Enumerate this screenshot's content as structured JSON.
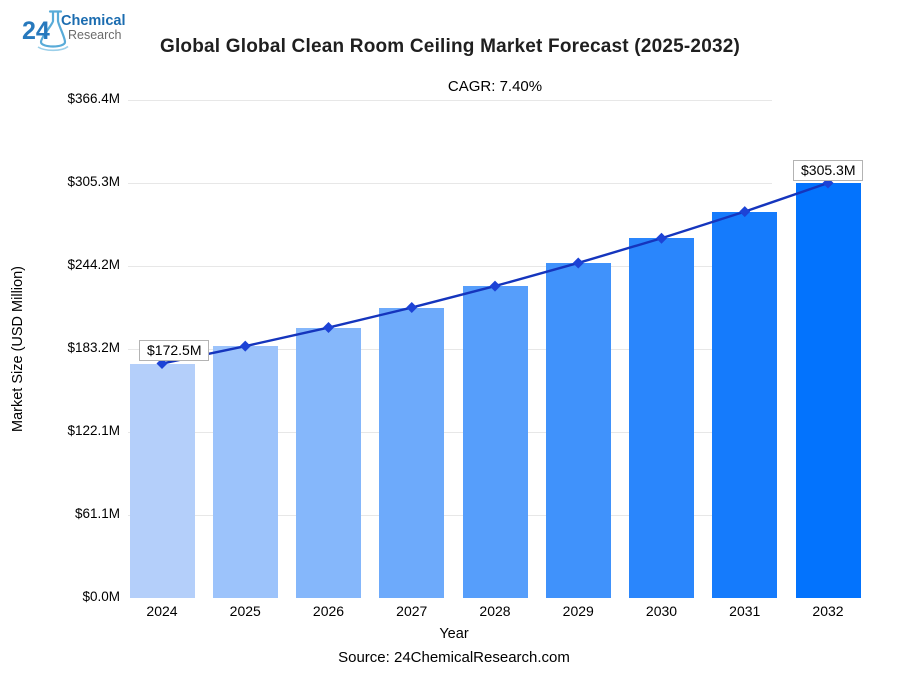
{
  "logo": {
    "number": "24",
    "name_top": "Chemical",
    "name_bottom": "Research"
  },
  "header": {
    "title": "Global Global Clean Room Ceiling Market Forecast (2025-2032)",
    "subtitle": "CAGR: 7.40%"
  },
  "footer": {
    "source": "Source: 24ChemicalResearch.com"
  },
  "chart_data": {
    "type": "bar",
    "title": "Global Global Clean Room Ceiling Market Forecast (2025-2032)",
    "subtitle": "CAGR: 7.40%",
    "xlabel": "Year",
    "ylabel": "Market Size (USD Million)",
    "categories": [
      "2024",
      "2025",
      "2026",
      "2027",
      "2028",
      "2029",
      "2030",
      "2031",
      "2032"
    ],
    "series": [
      {
        "name": "Market Size (USD Million)",
        "values": [
          172.5,
          185.3,
          199.0,
          213.7,
          229.5,
          246.5,
          264.7,
          284.3,
          305.3
        ]
      }
    ],
    "overlay_line": {
      "present": true,
      "marker": "diamond"
    },
    "ylim": [
      0,
      366.4
    ],
    "ytick_values": [
      0.0,
      61.1,
      122.1,
      183.2,
      244.2,
      305.3,
      366.4
    ],
    "ytick_labels": [
      "$0.0M",
      "$61.1M",
      "$122.1M",
      "$183.2M",
      "$244.2M",
      "$305.3M",
      "$366.4M"
    ],
    "grid": true,
    "legend_position": "none",
    "annotations": [
      {
        "category": "2024",
        "label": "$172.5M"
      },
      {
        "category": "2032",
        "label": "$305.3M"
      }
    ],
    "colors": {
      "bar_colors": [
        "#b4cffa",
        "#9cc3fb",
        "#85b7fb",
        "#6daafb",
        "#569efb",
        "#4092fb",
        "#2a86fc",
        "#157bfc",
        "#0373fd"
      ],
      "line_color": "#1535bd",
      "marker_color": "#1d43d6",
      "grid_color": "#e7e7e7",
      "annotation_border": "#b3b3b3",
      "logo_blue": "#2779bd",
      "logo_text_blue": "#1b6cb0",
      "logo_text_gray": "#6b6b6b",
      "flask_blue": "#58abd8"
    }
  }
}
